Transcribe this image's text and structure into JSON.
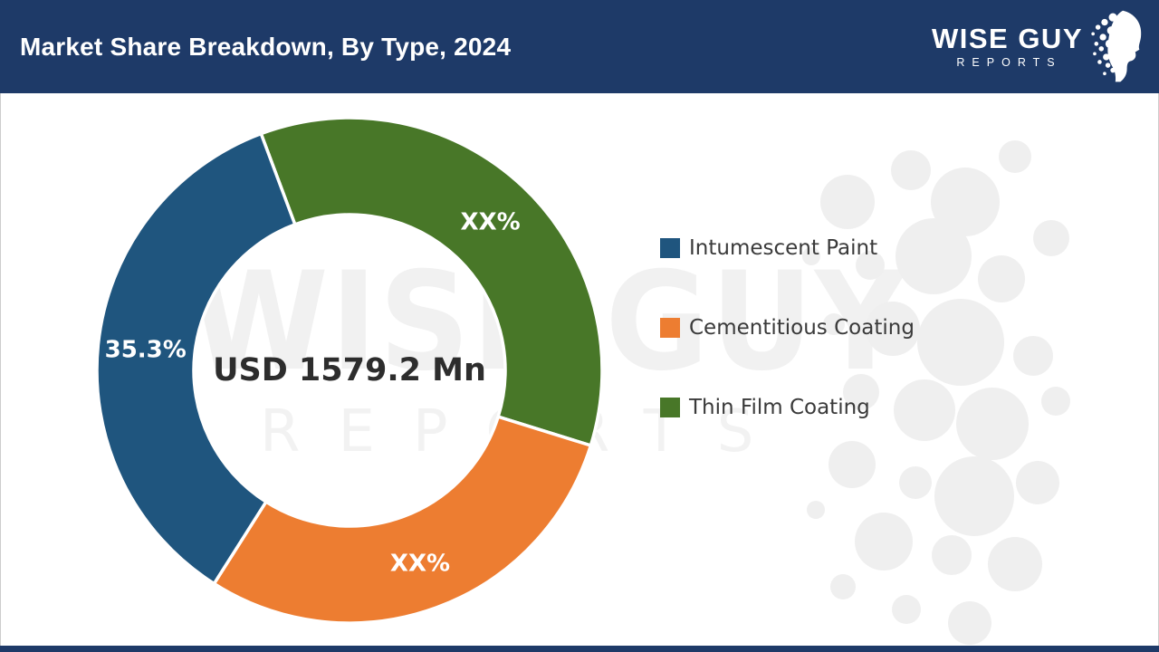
{
  "header": {
    "title": "Market Share Breakdown, By Type, 2024",
    "logo": {
      "line1": "WISE GUY",
      "line2": "REPORTS"
    }
  },
  "watermark": {
    "line1": "WISE GUY",
    "line2": "REPORTS"
  },
  "colors": {
    "header_bg": "#1e3a68",
    "footer_bg": "#1e3a68",
    "blue": "#1f557e",
    "orange": "#ed7d31",
    "green": "#487728",
    "center_text": "#2d2d2d",
    "legend_text": "#3a3a3a",
    "segment_label_text": "#ffffff",
    "watermark_gray": "#f1f1f1"
  },
  "chart_data": {
    "type": "pie",
    "variant": "donut",
    "title": "Market Share Breakdown, By Type, 2024",
    "center_label": "USD 1579.2 Mn",
    "start_angle_deg": -20.5,
    "legend_position": "right",
    "outer_radius": 279,
    "inner_radius": 172,
    "segments": [
      {
        "label": "Thin Film Coating",
        "percent": 35.5,
        "display_label": "XX%",
        "color": "#487728"
      },
      {
        "label": "Cementitious Coating",
        "percent": 29.2,
        "display_label": "XX%",
        "color": "#ed7d31"
      },
      {
        "label": "Intumescent Paint",
        "percent": 35.3,
        "display_label": "35.3%",
        "color": "#1f557e"
      }
    ]
  },
  "legend": {
    "items": [
      {
        "label": "Intumescent Paint",
        "color": "#1f557e"
      },
      {
        "label": "Cementitious Coating",
        "color": "#ed7d31"
      },
      {
        "label": "Thin Film Coating",
        "color": "#487728"
      }
    ]
  }
}
